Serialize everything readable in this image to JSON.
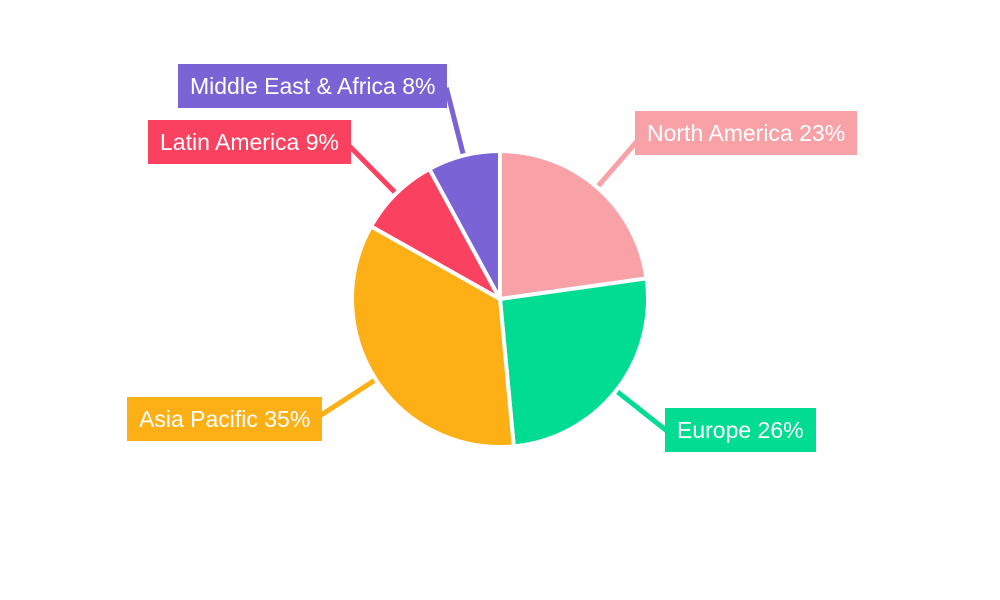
{
  "chart_data": {
    "type": "pie",
    "title": "",
    "direction": "clockwise",
    "start_angle_deg": 0,
    "legend_position": "none",
    "background_color": "#FFFFFF",
    "label_text_color": "#FFFFFF",
    "slice_gap_color": "#FFFFFF",
    "slices": [
      {
        "label": "North America",
        "value": 23,
        "display": "North America 23%",
        "color": "#F8A2A8"
      },
      {
        "label": "Europe",
        "value": 26,
        "display": "Europe 26%",
        "color": "#00DC92"
      },
      {
        "label": "Asia Pacific",
        "value": 35,
        "display": "Asia Pacific 35%",
        "color": "#FCB016"
      },
      {
        "label": "Latin America",
        "value": 9,
        "display": "Latin America 9%",
        "color": "#FA415F"
      },
      {
        "label": "Middle East & Africa",
        "value": 8,
        "display": "Middle East & Africa 8%",
        "color": "#7A63D4"
      }
    ]
  }
}
